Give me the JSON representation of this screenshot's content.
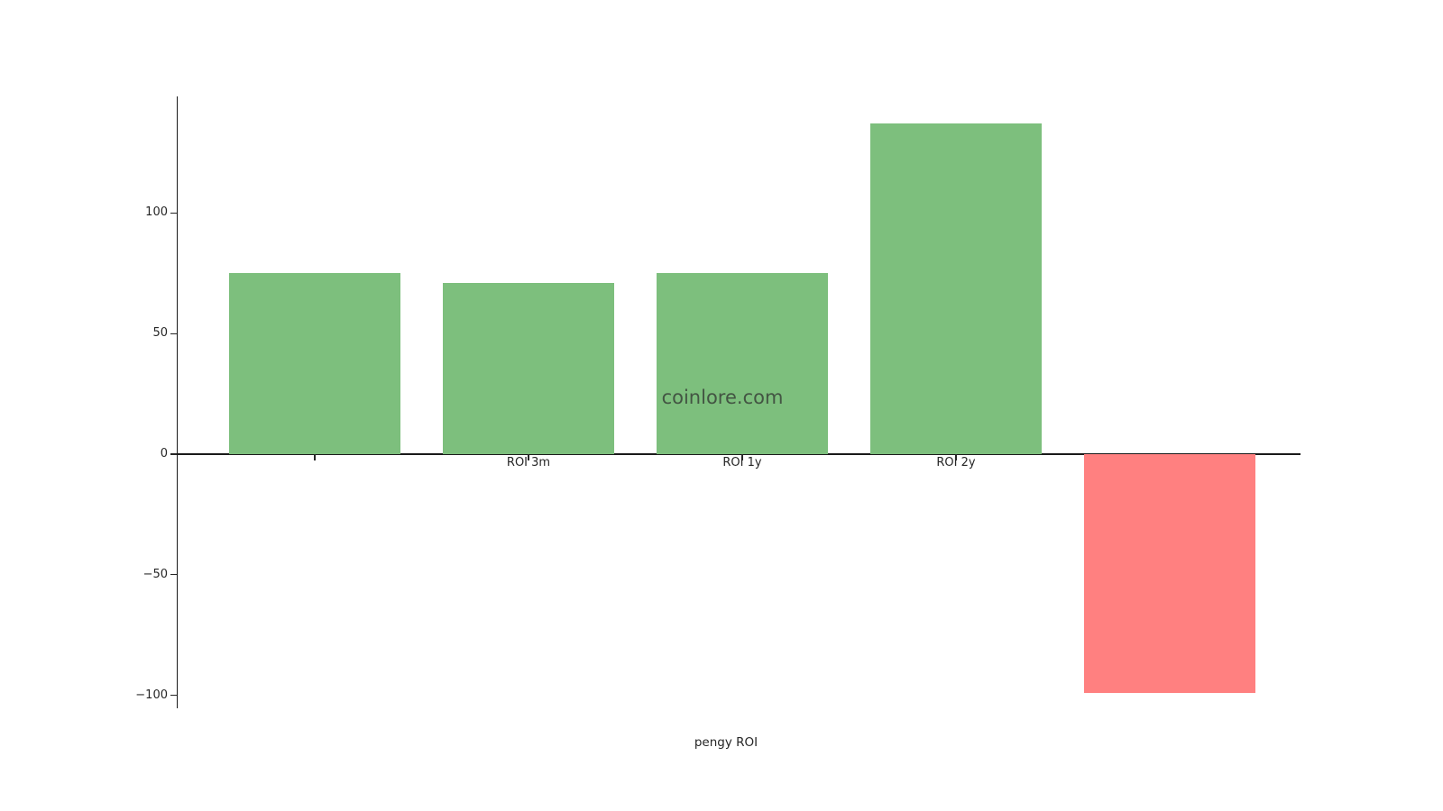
{
  "watermark": "coinlore.com",
  "chart_data": {
    "type": "bar",
    "title": "",
    "xlabel": "pengy ROI",
    "ylabel": "",
    "categories": [
      "",
      "ROI 3m",
      "ROI 1y",
      "ROI 2y",
      ""
    ],
    "values": [
      75,
      71,
      75,
      137,
      -99
    ],
    "yticks": [
      100,
      50,
      0,
      -50,
      -100
    ],
    "ytick_labels": [
      "100",
      "50",
      "0",
      "−50",
      "−100"
    ],
    "ylim": [
      -105.2,
      148.1
    ],
    "grid": false,
    "legend_position": "none",
    "colors": {
      "positive_bar": "#7dbf7d",
      "negative_bar": "#ff8080",
      "axis": "#1a1a1a",
      "tick_text": "#262626"
    }
  }
}
